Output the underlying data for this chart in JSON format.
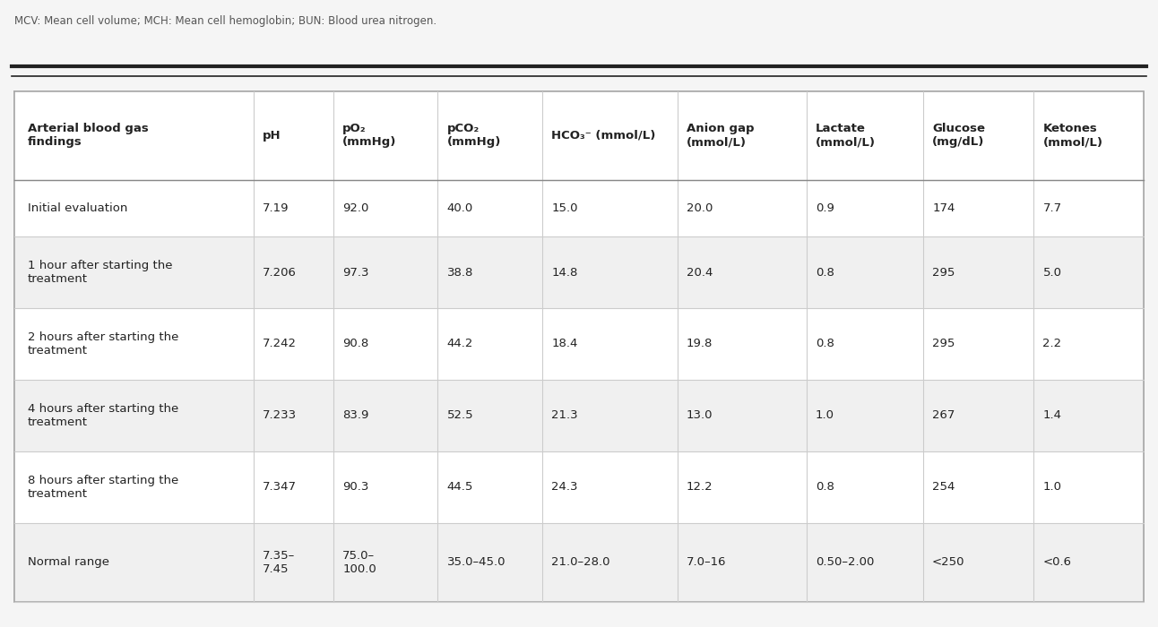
{
  "top_note": "MCV: Mean cell volume; MCH: Mean cell hemoglobin; BUN: Blood urea nitrogen.",
  "header_col1": "Arterial blood gas\nfindings",
  "headers": [
    "pH",
    "pO₂\n(mmHg)",
    "pCO₂\n(mmHg)",
    "HCO₃⁻ (mmol/L)",
    "Anion gap\n(mmol/L)",
    "Lactate\n(mmol/L)",
    "Glucose\n(mg/dL)",
    "Ketones\n(mmol/L)"
  ],
  "rows": [
    {
      "label": "Initial evaluation",
      "values": [
        "7.19",
        "92.0",
        "40.0",
        "15.0",
        "20.0",
        "0.9",
        "174",
        "7.7"
      ]
    },
    {
      "label": "1 hour after starting the\ntreatment",
      "values": [
        "7.206",
        "97.3",
        "38.8",
        "14.8",
        "20.4",
        "0.8",
        "295",
        "5.0"
      ]
    },
    {
      "label": "2 hours after starting the\ntreatment",
      "values": [
        "7.242",
        "90.8",
        "44.2",
        "18.4",
        "19.8",
        "0.8",
        "295",
        "2.2"
      ]
    },
    {
      "label": "4 hours after starting the\ntreatment",
      "values": [
        "7.233",
        "83.9",
        "52.5",
        "21.3",
        "13.0",
        "1.0",
        "267",
        "1.4"
      ]
    },
    {
      "label": "8 hours after starting the\ntreatment",
      "values": [
        "7.347",
        "90.3",
        "44.5",
        "24.3",
        "12.2",
        "0.8",
        "254",
        "1.0"
      ]
    },
    {
      "label": "Normal range",
      "values": [
        "7.35–\n7.45",
        "75.0–\n100.0",
        "35.0–45.0",
        "21.0–28.0",
        "7.0–16",
        "0.50–2.00",
        "<250",
        "<0.6"
      ]
    }
  ],
  "bg_color": "#f5f5f5",
  "table_bg": "#ffffff",
  "header_bg": "#ffffff",
  "row_bg_odd": "#ffffff",
  "row_bg_even": "#f0f0f0",
  "border_color": "#cccccc",
  "top_border_color": "#333333",
  "text_color": "#222222",
  "note_color": "#555555",
  "font_size": 9.5,
  "header_font_size": 9.5
}
